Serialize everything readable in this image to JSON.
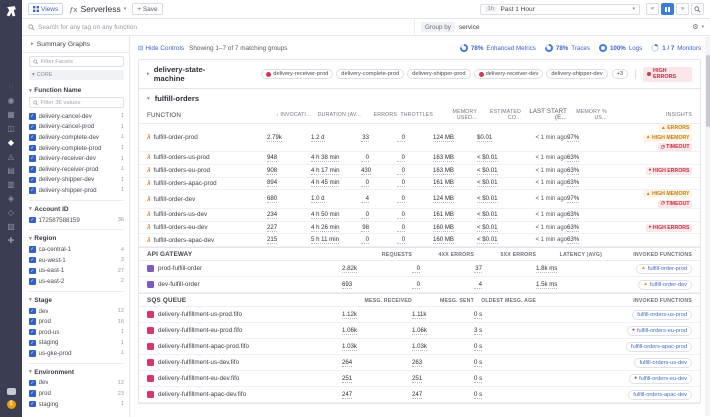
{
  "icons": {
    "chevron_down": "▾",
    "chevron_right": "▸",
    "back": "«",
    "forward": "»",
    "fx": "ƒx",
    "lambda": "λ",
    "gear": "⚙",
    "hide": "⊟",
    "check": "✓",
    "sort_down": "↓"
  },
  "rail_icons": [
    {
      "name": "search-icon",
      "glyph": "◌"
    },
    {
      "name": "watchdog-icon",
      "glyph": "◉"
    },
    {
      "name": "dashboards-icon",
      "glyph": "▦"
    },
    {
      "name": "infrastructure-icon",
      "glyph": "◫"
    },
    {
      "name": "serverless-icon",
      "glyph": "◆",
      "state": "active"
    },
    {
      "name": "apm-icon",
      "glyph": "◬"
    },
    {
      "name": "notebooks-icon",
      "glyph": "▤"
    },
    {
      "name": "logs-icon",
      "glyph": "▥"
    },
    {
      "name": "security-icon",
      "glyph": "◈"
    },
    {
      "name": "synthetics-icon",
      "glyph": "◇"
    },
    {
      "name": "integrations-icon",
      "glyph": "▧"
    },
    {
      "name": "settings-icon",
      "glyph": "✚"
    }
  ],
  "rail_bottom": {
    "badge_count": "1"
  },
  "topbar": {
    "views_label": "Views",
    "product": "Serverless",
    "save_label": "+ Save",
    "time_badge": "1h",
    "time_range": "Past 1 Hour"
  },
  "searchbar": {
    "placeholder": "Search for any tag on any function",
    "group_by_label": "Group by",
    "group_by_value": "service"
  },
  "facets": {
    "summary_graphs": "Summary Graphs",
    "filter_placeholder": "Filter Facets",
    "core_label": "CORE",
    "sections": [
      {
        "title": "Function Name",
        "filter": "Filter 36 values",
        "items": [
          {
            "label": "delivery-cancel-dev",
            "count": "1"
          },
          {
            "label": "delivery-cancel-prod",
            "count": "1"
          },
          {
            "label": "delivery-complete-dev",
            "count": "1"
          },
          {
            "label": "delivery-complete-prod",
            "count": "1"
          },
          {
            "label": "delivery-receiver-dev",
            "count": "1"
          },
          {
            "label": "delivery-receiver-prod",
            "count": "1"
          },
          {
            "label": "delivery-shipper-dev",
            "count": "1"
          },
          {
            "label": "delivery-shipper-prod",
            "count": "1"
          }
        ]
      },
      {
        "title": "Account ID",
        "items": [
          {
            "label": "172587588159",
            "count": "36"
          }
        ]
      },
      {
        "title": "Region",
        "items": [
          {
            "label": "ca-central-1",
            "count": "4"
          },
          {
            "label": "eu-west-1",
            "count": "3"
          },
          {
            "label": "us-east-1",
            "count": "27"
          },
          {
            "label": "us-east-2",
            "count": "2"
          }
        ]
      },
      {
        "title": "Stage",
        "items": [
          {
            "label": "dev",
            "count": "12"
          },
          {
            "label": "prod",
            "count": "16"
          },
          {
            "label": "prod-us",
            "count": "1"
          },
          {
            "label": "staging",
            "count": "1"
          },
          {
            "label": "us-gke-prod",
            "count": "1"
          }
        ]
      },
      {
        "title": "Environment",
        "items": [
          {
            "label": "dev",
            "count": "12"
          },
          {
            "label": "prod",
            "count": "23"
          },
          {
            "label": "staging",
            "count": "1"
          }
        ]
      }
    ]
  },
  "controls_row": {
    "hide_controls": "Hide Controls",
    "showing": "Showing 1–7 of 7 matching groups",
    "stats": [
      {
        "value": "78%",
        "label": "Enhanced Metrics",
        "pct": 78
      },
      {
        "value": "78%",
        "label": "Traces",
        "pct": 78
      },
      {
        "value": "100%",
        "label": "Logs",
        "pct": 100
      },
      {
        "value": "1 / 7",
        "label": "Monitors",
        "pct": 14
      }
    ]
  },
  "group1": {
    "name": "delivery-state-machine",
    "pills": [
      {
        "label": "delivery-receiver-prod",
        "error": true
      },
      {
        "label": "delivery-complete-prod"
      },
      {
        "label": "delivery-shipper-prod"
      },
      {
        "label": "delivery-receiver-dev",
        "error": true
      },
      {
        "label": "delivery-shipper-dev"
      }
    ],
    "more": "+3",
    "badge": "HIGH ERRORS"
  },
  "group2": {
    "name": "fulfill-orders"
  },
  "lambda_table": {
    "headers": [
      "FUNCTION",
      "↓ INVOCATI...",
      "DURATION (AV...",
      "ERRORS",
      "THROTTLES",
      "MEMORY USED...",
      "ESTIMATED CO...",
      "LAST START (E...",
      "MEMORY % US...",
      "INSIGHTS"
    ],
    "rows": [
      {
        "name": "fulfill-order-prod",
        "invocations": "2.79k",
        "inv_pct": 100,
        "duration": "1.2 d",
        "dur_pct": 100,
        "errors": "33",
        "err_pct": 8,
        "throttles": "0",
        "thr_pct": 0,
        "memory": "124 MB",
        "mem_pct": 76,
        "cost": "$0.01",
        "cost_pct": 100,
        "last_start": "< 1 min ago",
        "mem_used": "97%",
        "mem_used_pct": 97,
        "insights": [
          {
            "icon": "▲",
            "label": "ERRORS",
            "type": "warn"
          },
          {
            "icon": "▲",
            "label": "HIGH MEMORY",
            "type": "warn"
          },
          {
            "icon": "◷",
            "label": "TIMEOUT",
            "type": "timeout"
          }
        ]
      },
      {
        "name": "fulfill-orders-us-prod",
        "invocations": "948",
        "inv_pct": 34,
        "duration": "4 h 38 min",
        "dur_pct": 16,
        "errors": "0",
        "err_pct": 0,
        "throttles": "0",
        "thr_pct": 0,
        "memory": "163 MB",
        "mem_pct": 100,
        "cost": "< $0.01",
        "cost_pct": 10,
        "last_start": "< 1 min ago",
        "mem_used": "63%",
        "mem_used_pct": 63,
        "insights": []
      },
      {
        "name": "fulfill-orders-eu-prod",
        "invocations": "908",
        "inv_pct": 33,
        "duration": "4 h 17 min",
        "dur_pct": 15,
        "errors": "430",
        "err_pct": 100,
        "throttles": "0",
        "thr_pct": 0,
        "memory": "163 MB",
        "mem_pct": 100,
        "cost": "< $0.01",
        "cost_pct": 10,
        "last_start": "< 1 min ago",
        "mem_used": "63%",
        "mem_used_pct": 63,
        "insights": [
          {
            "icon": "●",
            "label": "HIGH ERRORS",
            "type": "error"
          }
        ]
      },
      {
        "name": "fulfill-orders-apac-prod",
        "invocations": "894",
        "inv_pct": 32,
        "duration": "4 h 45 min",
        "dur_pct": 17,
        "errors": "0",
        "err_pct": 0,
        "throttles": "0",
        "thr_pct": 0,
        "memory": "161 MB",
        "mem_pct": 99,
        "cost": "< $0.01",
        "cost_pct": 10,
        "last_start": "< 1 min ago",
        "mem_used": "63%",
        "mem_used_pct": 63,
        "insights": []
      },
      {
        "name": "fulfill-order-dev",
        "invocations": "680",
        "inv_pct": 24,
        "duration": "1.0 d",
        "dur_pct": 83,
        "errors": "4",
        "err_pct": 1,
        "throttles": "0",
        "thr_pct": 0,
        "memory": "124 MB",
        "mem_pct": 76,
        "cost": "< $0.01",
        "cost_pct": 10,
        "last_start": "< 1 min ago",
        "mem_used": "97%",
        "mem_used_pct": 97,
        "insights": [
          {
            "icon": "▲",
            "label": "HIGH MEMORY",
            "type": "warn"
          },
          {
            "icon": "◷",
            "label": "TIMEOUT",
            "type": "timeout"
          }
        ]
      },
      {
        "name": "fulfill-orders-us-dev",
        "invocations": "234",
        "inv_pct": 8,
        "duration": "4 h 50 min",
        "dur_pct": 17,
        "errors": "0",
        "err_pct": 0,
        "throttles": "0",
        "thr_pct": 0,
        "memory": "161 MB",
        "mem_pct": 99,
        "cost": "< $0.01",
        "cost_pct": 10,
        "last_start": "< 1 min ago",
        "mem_used": "63%",
        "mem_used_pct": 63,
        "insights": []
      },
      {
        "name": "fulfill-orders-eu-dev",
        "invocations": "227",
        "inv_pct": 8,
        "duration": "4 h 26 min",
        "dur_pct": 15,
        "errors": "98",
        "err_pct": 23,
        "throttles": "0",
        "thr_pct": 0,
        "memory": "160 MB",
        "mem_pct": 98,
        "cost": "< $0.01",
        "cost_pct": 10,
        "last_start": "< 1 min ago",
        "mem_used": "63%",
        "mem_used_pct": 63,
        "insights": [
          {
            "icon": "●",
            "label": "HIGH ERRORS",
            "type": "error"
          }
        ]
      },
      {
        "name": "fulfill-orders-apac-dev",
        "invocations": "215",
        "inv_pct": 8,
        "duration": "5 h 11 min",
        "dur_pct": 18,
        "errors": "0",
        "err_pct": 0,
        "throttles": "0",
        "thr_pct": 0,
        "memory": "160 MB",
        "mem_pct": 98,
        "cost": "< $0.01",
        "cost_pct": 10,
        "last_start": "< 1 min ago",
        "mem_used": "63%",
        "mem_used_pct": 63,
        "insights": []
      }
    ]
  },
  "api_table": {
    "headers": [
      "API GATEWAY",
      "REQUESTS",
      "4XX ERRORS",
      "5XX ERRORS",
      "LATENCY (AVG)",
      "INVOKED FUNCTIONS"
    ],
    "rows": [
      {
        "name": "prod-fulfill-order",
        "requests": "2.82k",
        "req_pct": 100,
        "errors_4xx": "0",
        "e4_pct": 0,
        "errors_5xx": "37",
        "e5_pct": 100,
        "latency": "1.8k ms",
        "lat_pct": 100,
        "invoked": {
          "label": "fulfill-order-prod",
          "icon": "▲",
          "type": "warn"
        }
      },
      {
        "name": "dev-fulfill-order",
        "requests": "693",
        "req_pct": 25,
        "errors_4xx": "0",
        "e4_pct": 0,
        "errors_5xx": "4",
        "e5_pct": 11,
        "latency": "1.5k ms",
        "lat_pct": 83,
        "invoked": {
          "label": "fulfill-order-dev",
          "icon": "▲",
          "type": "warn"
        }
      }
    ]
  },
  "sqs_table": {
    "headers": [
      "SQS QUEUE",
      "MESG. RECEIVED",
      "MESG. SENT",
      "OLDEST MESG. AGE",
      "INVOKED FUNCTIONS"
    ],
    "rows": [
      {
        "name": "delivery-fulfillment-us-prod.fifo",
        "received": "1.12k",
        "rec_pct": 100,
        "sent": "1.11k",
        "sent_pct": 99,
        "oldest": "0 s",
        "old_pct": 0,
        "invoked": {
          "label": "fulfill-orders-us-prod"
        }
      },
      {
        "name": "delivery-fulfillment-eu-prod.fifo",
        "received": "1.06k",
        "rec_pct": 95,
        "sent": "1.06k",
        "sent_pct": 95,
        "oldest": "3 s",
        "old_pct": 100,
        "invoked": {
          "label": "fulfill-orders-eu-prod",
          "icon": "●",
          "type": "error"
        }
      },
      {
        "name": "delivery-fulfillment-apac-prod.fifo",
        "received": "1.03k",
        "rec_pct": 92,
        "sent": "1.03k",
        "sent_pct": 92,
        "oldest": "0 s",
        "old_pct": 0,
        "invoked": {
          "label": "fulfill-orders-apac-prod"
        }
      },
      {
        "name": "delivery-fulfillment-us-dev.fifo",
        "received": "264",
        "rec_pct": 24,
        "sent": "263",
        "sent_pct": 24,
        "oldest": "0 s",
        "old_pct": 0,
        "invoked": {
          "label": "fulfill-orders-us-dev"
        }
      },
      {
        "name": "delivery-fulfillment-eu-dev.fifo",
        "received": "251",
        "rec_pct": 22,
        "sent": "251",
        "sent_pct": 22,
        "oldest": "0 s",
        "old_pct": 8,
        "invoked": {
          "label": "fulfill-orders-eu-dev",
          "icon": "●",
          "type": "error"
        }
      },
      {
        "name": "delivery-fulfillment-apac-dev.fifo",
        "received": "247",
        "rec_pct": 22,
        "sent": "247",
        "sent_pct": 22,
        "oldest": "0 s",
        "old_pct": 0,
        "invoked": {
          "label": "fulfill-orders-apac-dev"
        }
      }
    ]
  }
}
